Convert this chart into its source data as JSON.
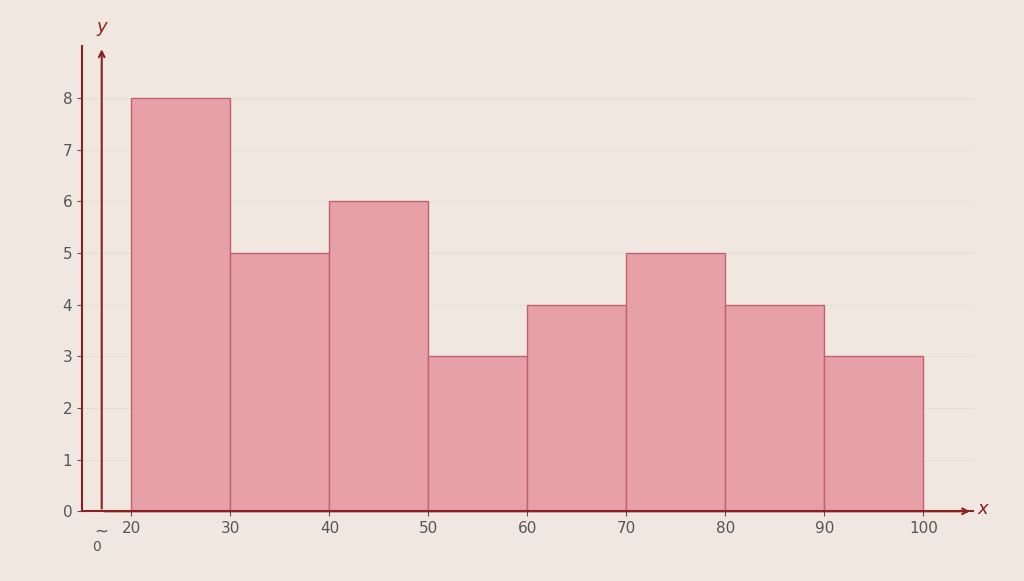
{
  "class_intervals": [
    [
      20,
      30
    ],
    [
      30,
      40
    ],
    [
      40,
      50
    ],
    [
      50,
      60
    ],
    [
      60,
      70
    ],
    [
      70,
      80
    ],
    [
      80,
      90
    ],
    [
      90,
      100
    ]
  ],
  "frequencies": [
    8,
    5,
    6,
    3,
    4,
    5,
    4,
    3
  ],
  "bar_color": "#e8a0a8",
  "bar_edgecolor": "#c06070",
  "background_color": "#f0e8e0",
  "xlabel": "x",
  "ylabel": "y",
  "xlim": [
    15,
    105
  ],
  "ylim": [
    0,
    9
  ],
  "xticks": [
    20,
    30,
    40,
    50,
    60,
    70,
    80,
    90,
    100
  ],
  "yticks": [
    0,
    1,
    2,
    3,
    4,
    5,
    6,
    7,
    8
  ],
  "title": "",
  "axis_color": "#8b2020",
  "tick_color": "#555555",
  "grid_color": "#cccccc"
}
